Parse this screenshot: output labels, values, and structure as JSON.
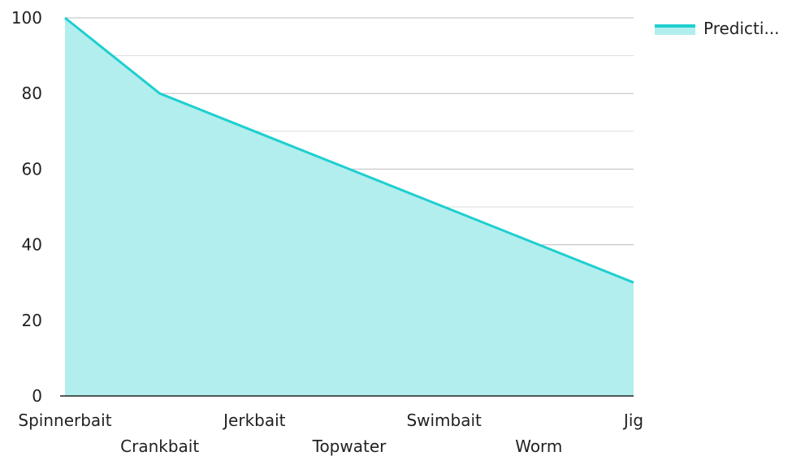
{
  "chart_data": {
    "type": "area",
    "categories": [
      "Spinnerbait",
      "Crankbait",
      "Jerkbait",
      "Topwater",
      "Swimbait",
      "Worm",
      "Jig"
    ],
    "series": [
      {
        "name": "Predicti...",
        "values": [
          100,
          80,
          70,
          60,
          50,
          40,
          30
        ]
      }
    ],
    "y_ticks": [
      0,
      20,
      40,
      60,
      80,
      100
    ],
    "ylim": [
      0,
      100
    ],
    "grid": true,
    "legend_position": "top-right",
    "colors": {
      "line": "#1fcfcf",
      "fill": "#b2eeee",
      "grid_major": "#bdbdbd",
      "grid_minor": "#dedede",
      "axis": "#222222"
    }
  }
}
